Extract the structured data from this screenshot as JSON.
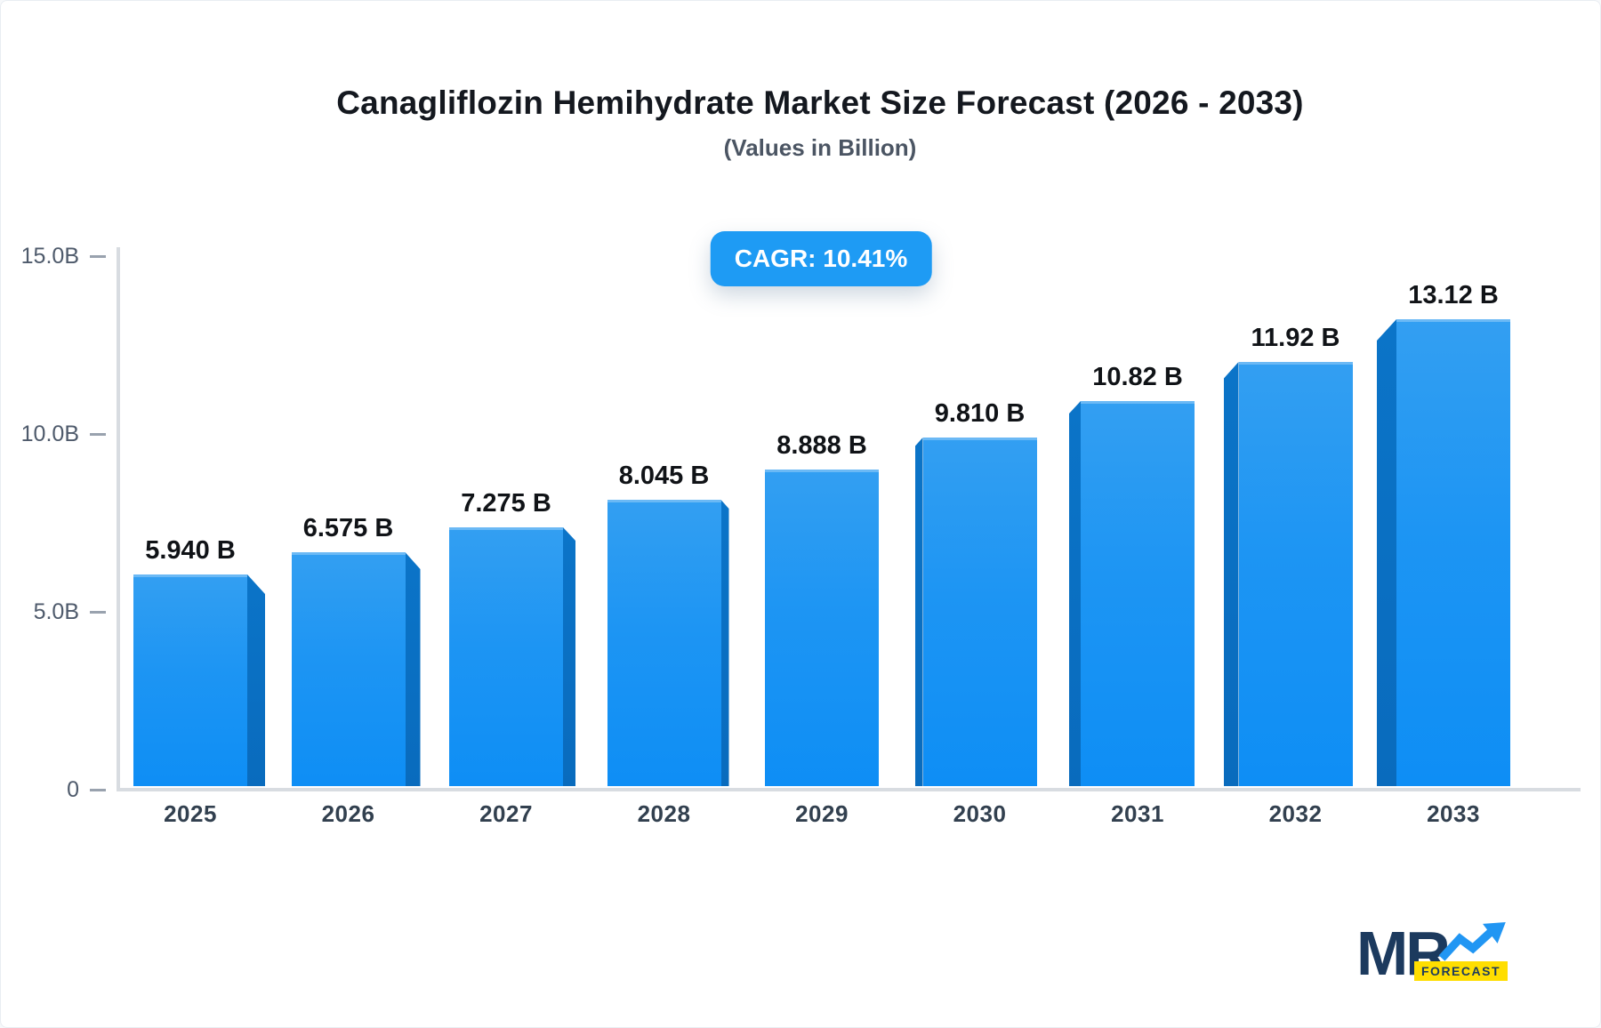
{
  "title": "Canagliflozin Hemihydrate Market Size Forecast (2026 - 2033)",
  "subtitle": "(Values in Billion)",
  "badge": {
    "label": "CAGR: 10.41%",
    "bg_color": "#1e9bf4"
  },
  "y_axis": {
    "tick_labels": [
      "15.0B",
      "10.0B",
      "5.0B",
      "0"
    ]
  },
  "chart_data": {
    "type": "bar",
    "title": "Canagliflozin Hemihydrate Market Size Forecast (2026 - 2033)",
    "subtitle": "(Values in Billion)",
    "cagr": "10.41%",
    "categories": [
      "2025",
      "2026",
      "2027",
      "2028",
      "2029",
      "2030",
      "2031",
      "2032",
      "2033"
    ],
    "values": [
      5.94,
      6.575,
      7.275,
      8.045,
      8.888,
      9.81,
      10.82,
      11.92,
      13.12
    ],
    "value_labels": [
      "5.940 B",
      "6.575 B",
      "7.275 B",
      "8.045 B",
      "8.888 B",
      "9.810 B",
      "10.82 B",
      "11.92 B",
      "13.12 B"
    ],
    "xlabel": "",
    "ylabel": "",
    "ylim": [
      0,
      15
    ],
    "y_ticks": [
      0,
      5,
      10,
      15
    ],
    "grid": false,
    "legend": "none",
    "bar_color": "#1e95f3",
    "bar_side_color": "#0b72c4"
  },
  "branding": {
    "name": "MR",
    "tagline": "FORECAST"
  }
}
